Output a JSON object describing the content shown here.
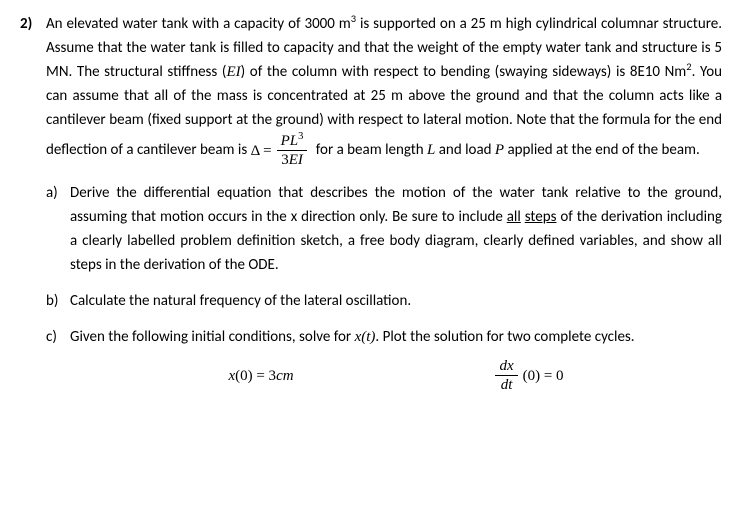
{
  "problem": {
    "number": "2)",
    "intro_p1_a": "An elevated water tank with a capacity of 3000 m",
    "intro_p1_sup1": "3",
    "intro_p1_b": " is supported on a 25 m high cylindrical columnar structure. Assume that the water tank is filled to capacity and that the weight of the empty water tank and structure is 5 MN. The structural stiffness (",
    "ei_var": "EI",
    "intro_p1_c": ") of the column with respect to bending (swaying sideways) is 8E10 Nm",
    "intro_p1_sup2": "2",
    "intro_p1_d": ". You can assume that all of the mass is concentrated at 25 m above the ground and that the column acts like a cantilever beam (fixed support at the ground) with respect to lateral motion. Note that the formula for the end deflection of a cantilever beam is ",
    "formula_delta": "Δ =",
    "formula_num_a": "PL",
    "formula_num_sup": "3",
    "formula_den_a": "3",
    "formula_den_b": "EI",
    "intro_p1_e": " for a beam length ",
    "var_L": "L",
    "intro_p1_f": " and load ",
    "var_P": "P",
    "intro_p1_g": " applied at the end of the beam.",
    "parts": {
      "a": {
        "label": "a)",
        "text_1": "Derive the differential equation that describes the motion of the water tank relative to the ground, assuming that motion occurs in the x direction only. Be sure to include ",
        "u1": "all",
        "text_2": " ",
        "u2": "steps",
        "text_3": " of the derivation including a clearly labelled problem definition sketch, a free body diagram, clearly defined variables, and show all steps in the derivation of the ODE."
      },
      "b": {
        "label": "b)",
        "text": "Calculate the natural frequency of the lateral oscillation."
      },
      "c": {
        "label": "c)",
        "text_1": "Given the following initial conditions, solve for ",
        "var_xt": "x(t)",
        "text_2": ". Plot the solution for two complete cycles.",
        "ic1_a": "x",
        "ic1_b": "(0) = 3  ",
        "ic1_c": "cm",
        "ic2_num": "dx",
        "ic2_den": "dt",
        "ic2_b": "(0) = 0"
      }
    }
  }
}
